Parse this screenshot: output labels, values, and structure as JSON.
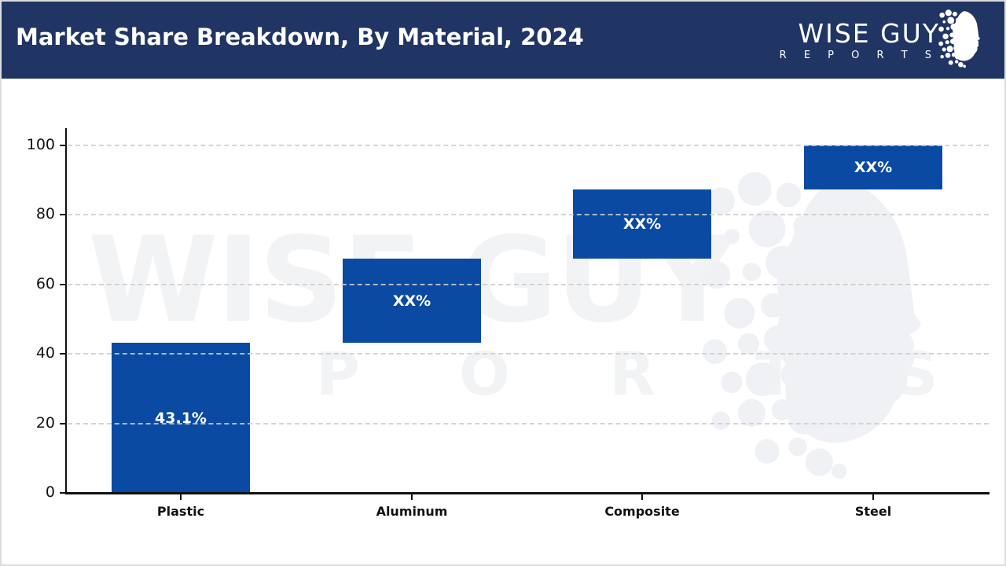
{
  "header": {
    "title": "Market Share Breakdown, By Material, 2024",
    "bg_color": "#213564",
    "logo": {
      "line1": "WISE GUY",
      "line2": "R E P O R T S",
      "icon": "dotted-head-profile-icon"
    }
  },
  "watermark": {
    "line1": "WISE GUY",
    "line2": "P O R T S",
    "icon": "dotted-head-profile-icon",
    "color": "#f2f3f5"
  },
  "chart_data": {
    "type": "bar",
    "subtype": "waterfall",
    "title": "Market Share Breakdown, By Material, 2024",
    "categories": [
      "Plastic",
      "Aluminum",
      "Composite",
      "Steel"
    ],
    "series": [
      {
        "name": "Market share (%)",
        "base": [
          0,
          43.1,
          67.4,
          87.3
        ],
        "values": [
          43.1,
          24.3,
          19.9,
          12.7
        ]
      }
    ],
    "bar_labels": [
      "43.1%",
      "XX%",
      "XX%",
      "XX%"
    ],
    "xlabel": "",
    "ylabel": "",
    "ylim": [
      0,
      105
    ],
    "yticks": [
      0,
      20,
      40,
      60,
      80,
      100
    ],
    "grid": "horizontal-dashed",
    "legend": "none",
    "bar_color": "#0a4aa3",
    "bar_label_color": "#ffffff",
    "gridline_color": "#d9d9d9"
  }
}
